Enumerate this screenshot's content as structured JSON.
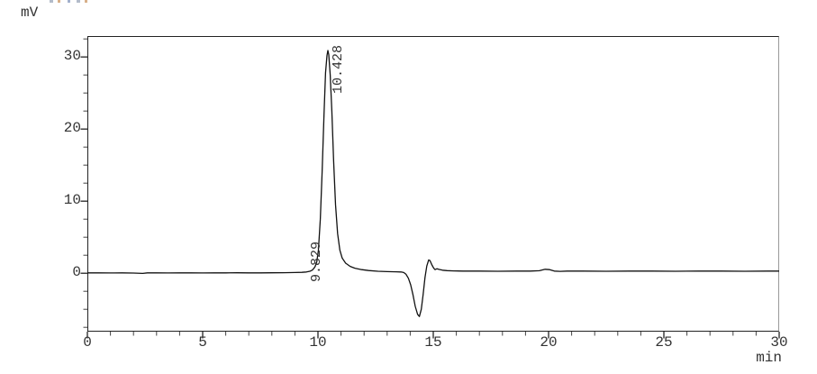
{
  "chart_data": {
    "type": "line",
    "title": "",
    "xlabel": "min",
    "ylabel": "mV",
    "xlim": [
      0,
      30
    ],
    "ylim": [
      -8.1,
      32.9
    ],
    "xticks_major": [
      0,
      5,
      10,
      15,
      20,
      25,
      30
    ],
    "xtick_labels": [
      "0",
      "5",
      "10",
      "15",
      "20",
      "25",
      "30"
    ],
    "x_minor_step": 1,
    "yticks_major": [
      0,
      10,
      20,
      30
    ],
    "ytick_labels": [
      "0",
      "10",
      "20",
      "30"
    ],
    "y_minor_step": 2.5,
    "grid": false,
    "legend_position": "none",
    "peaks": [
      {
        "label": "9.829",
        "t": 9.829,
        "apex_mv": 0.7
      },
      {
        "label": "10.428",
        "t": 10.428,
        "apex_mv": 30.9
      }
    ],
    "series": [
      {
        "name": "detector-signal",
        "points": [
          [
            0,
            0.05
          ],
          [
            0.5,
            0.05
          ],
          [
            1,
            0.04
          ],
          [
            1.5,
            0.05
          ],
          [
            2,
            0.03
          ],
          [
            2.4,
            -0.02
          ],
          [
            2.6,
            0.05
          ],
          [
            3,
            0.05
          ],
          [
            3.5,
            0.04
          ],
          [
            4,
            0.05
          ],
          [
            4.5,
            0.05
          ],
          [
            5,
            0.04
          ],
          [
            5.5,
            0.05
          ],
          [
            6,
            0.05
          ],
          [
            6.5,
            0.06
          ],
          [
            7,
            0.05
          ],
          [
            7.5,
            0.05
          ],
          [
            8,
            0.06
          ],
          [
            8.5,
            0.07
          ],
          [
            9,
            0.1
          ],
          [
            9.3,
            0.12
          ],
          [
            9.5,
            0.18
          ],
          [
            9.65,
            0.28
          ],
          [
            9.75,
            0.42
          ],
          [
            9.829,
            0.7
          ],
          [
            9.88,
            0.95
          ],
          [
            9.95,
            1.6
          ],
          [
            10.02,
            3.2
          ],
          [
            10.1,
            7.5
          ],
          [
            10.18,
            14
          ],
          [
            10.26,
            22
          ],
          [
            10.33,
            27.8
          ],
          [
            10.39,
            30.2
          ],
          [
            10.428,
            30.9
          ],
          [
            10.47,
            30.3
          ],
          [
            10.53,
            27.5
          ],
          [
            10.6,
            22.5
          ],
          [
            10.68,
            15.5
          ],
          [
            10.76,
            9.5
          ],
          [
            10.85,
            5.5
          ],
          [
            10.95,
            3.2
          ],
          [
            11.05,
            2.1
          ],
          [
            11.2,
            1.4
          ],
          [
            11.4,
            0.95
          ],
          [
            11.6,
            0.7
          ],
          [
            11.9,
            0.5
          ],
          [
            12.2,
            0.38
          ],
          [
            12.6,
            0.28
          ],
          [
            13,
            0.22
          ],
          [
            13.4,
            0.2
          ],
          [
            13.6,
            0.18
          ],
          [
            13.72,
            0.1
          ],
          [
            13.82,
            -0.15
          ],
          [
            13.92,
            -0.7
          ],
          [
            14.02,
            -1.6
          ],
          [
            14.12,
            -3.0
          ],
          [
            14.22,
            -4.6
          ],
          [
            14.32,
            -5.7
          ],
          [
            14.4,
            -6.0
          ],
          [
            14.48,
            -5.0
          ],
          [
            14.56,
            -3.0
          ],
          [
            14.64,
            -0.6
          ],
          [
            14.72,
            1.0
          ],
          [
            14.8,
            1.85
          ],
          [
            14.86,
            1.75
          ],
          [
            14.94,
            1.15
          ],
          [
            15.02,
            0.7
          ],
          [
            15.08,
            0.5
          ],
          [
            15.16,
            0.62
          ],
          [
            15.26,
            0.52
          ],
          [
            15.4,
            0.42
          ],
          [
            15.6,
            0.36
          ],
          [
            15.9,
            0.32
          ],
          [
            16.3,
            0.3
          ],
          [
            17,
            0.3
          ],
          [
            17.8,
            0.28
          ],
          [
            18.6,
            0.3
          ],
          [
            19.2,
            0.3
          ],
          [
            19.6,
            0.35
          ],
          [
            19.85,
            0.55
          ],
          [
            20.05,
            0.5
          ],
          [
            20.25,
            0.3
          ],
          [
            20.5,
            0.26
          ],
          [
            20.8,
            0.3
          ],
          [
            21.5,
            0.3
          ],
          [
            22.5,
            0.28
          ],
          [
            23.5,
            0.3
          ],
          [
            24.5,
            0.3
          ],
          [
            25.5,
            0.28
          ],
          [
            26.5,
            0.3
          ],
          [
            27.5,
            0.3
          ],
          [
            28.5,
            0.28
          ],
          [
            29.5,
            0.3
          ],
          [
            30,
            0.3
          ]
        ]
      }
    ]
  },
  "colors": {
    "trace": "#111111",
    "axis": "#222222",
    "axis_right": "#9a9a9a",
    "text": "#333333",
    "background": "#ffffff"
  }
}
